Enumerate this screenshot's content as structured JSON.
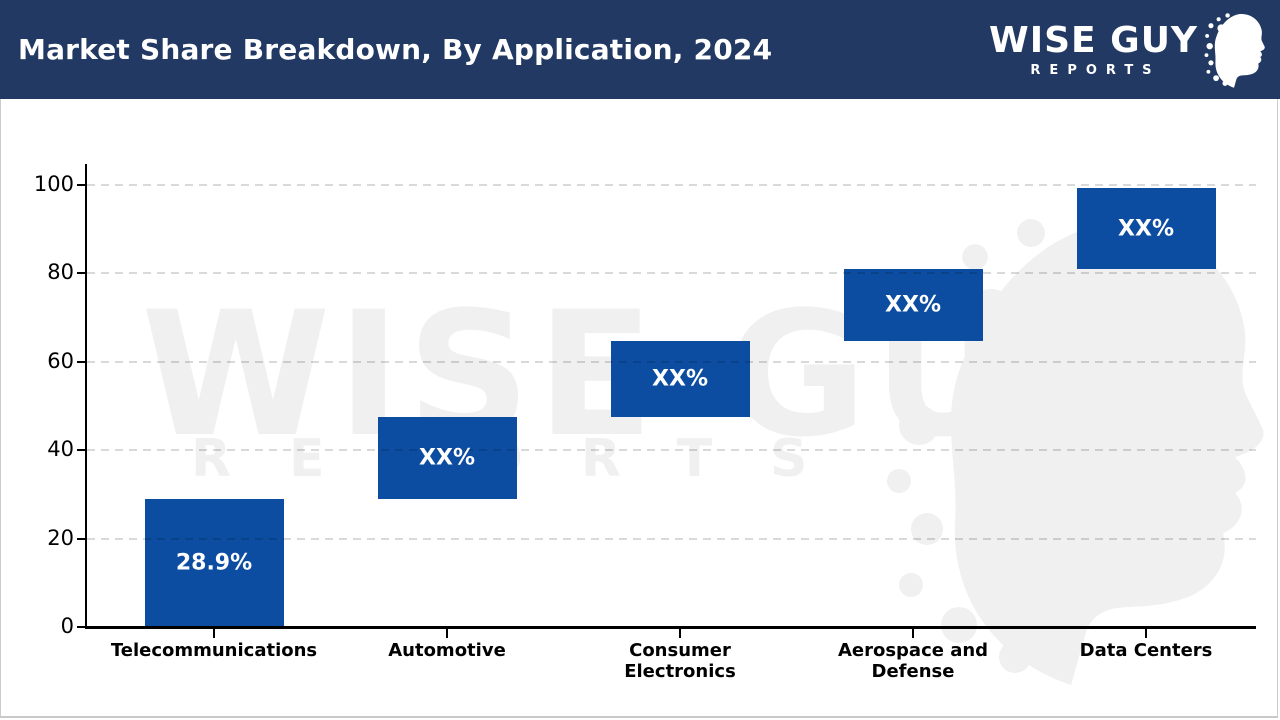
{
  "header": {
    "title": "Market Share Breakdown, By Application, 2024",
    "logo": {
      "line1": "WISE GUY",
      "line2": "REPORTS"
    }
  },
  "watermark": {
    "line1": "WISE GUY",
    "line2": "REPORTS"
  },
  "colors": {
    "header_bg": "#223963",
    "bar": "#0c4da2",
    "bar_label_text": "#ffffff",
    "axis": "#000000",
    "watermark_gray": "#f0f0f0"
  },
  "chart_data": {
    "type": "bar",
    "subtype": "waterfall",
    "title": "Market Share Breakdown, By Application, 2024",
    "categories": [
      "Telecommunications",
      "Automotive",
      "Consumer Electronics",
      "Aerospace and Defense",
      "Data Centers"
    ],
    "category_lines": [
      [
        "Telecommunications"
      ],
      [
        "Automotive"
      ],
      [
        "Consumer",
        "Electronics"
      ],
      [
        "Aerospace and",
        "Defense"
      ],
      [
        "Data Centers"
      ]
    ],
    "segments": [
      {
        "category": "Telecommunications",
        "from": 0,
        "to": 28.9,
        "label": "28.9%"
      },
      {
        "category": "Automotive",
        "from": 28.9,
        "to": 47.5,
        "label": "XX%"
      },
      {
        "category": "Consumer Electronics",
        "from": 47.5,
        "to": 64.7,
        "label": "XX%"
      },
      {
        "category": "Aerospace and Defense",
        "from": 64.7,
        "to": 80.9,
        "label": "XX%"
      },
      {
        "category": "Data Centers",
        "from": 80.9,
        "to": 99.2,
        "label": "XX%"
      }
    ],
    "ylim": [
      0,
      100
    ],
    "yticks": [
      0,
      20,
      40,
      60,
      80,
      100
    ],
    "xlabel": "",
    "ylabel": "",
    "grid": true,
    "legend": false
  }
}
